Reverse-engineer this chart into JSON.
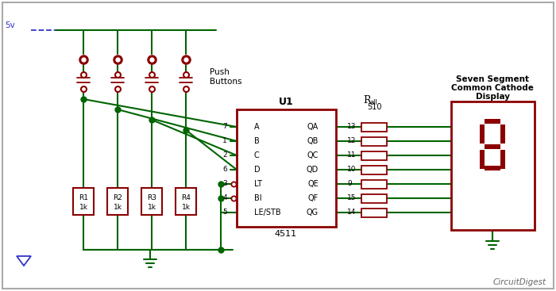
{
  "bg_color": "#ffffff",
  "border_color": "#aaaaaa",
  "wire_color": "#006400",
  "chip_color": "#8B0000",
  "resistor_color": "#8B0000",
  "display_color": "#8B0000",
  "text_color": "#000000",
  "blue_color": "#3333cc",
  "dot_color": "#006400",
  "supply_label": "5v",
  "ic_label": "U1",
  "ic_name": "4511",
  "r_value": "510",
  "push_label": "Push\nButtons",
  "seven_seg_line1": "Seven Segment",
  "seven_seg_line2": "Common Cathode",
  "seven_seg_line3": "Display",
  "r_big": "R",
  "r_sub": "all",
  "resistor_labels": [
    "R1",
    "R2",
    "R3",
    "R4"
  ],
  "resistor_values": [
    "1k",
    "1k",
    "1k",
    "1k"
  ],
  "ic_inputs": [
    "A",
    "B",
    "C",
    "D",
    "LT",
    "BI",
    "LE/STB"
  ],
  "ic_input_pins": [
    "7",
    "1",
    "2",
    "6",
    "3",
    "4",
    "5"
  ],
  "ic_outputs": [
    "QA",
    "QB",
    "QC",
    "QD",
    "QE",
    "QF",
    "QG"
  ],
  "ic_output_pins": [
    "13",
    "12",
    "11",
    "10",
    "9",
    "15",
    "14"
  ],
  "footer_text": "CircuitDigest"
}
